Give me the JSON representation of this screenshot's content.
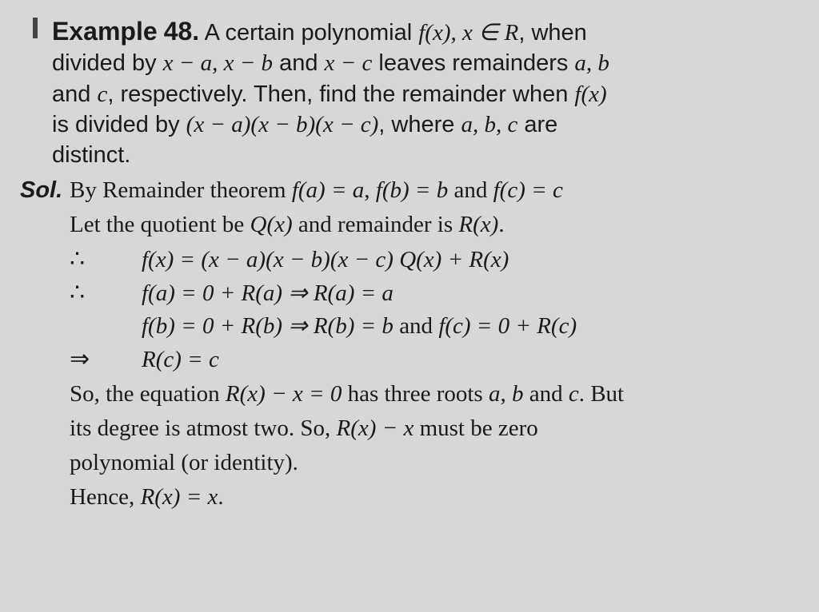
{
  "example": {
    "label": "Example",
    "number": "48.",
    "problem_l1_a": "A certain polynomial ",
    "problem_l1_math1": "f(x), x ∈ R",
    "problem_l1_b": ", when",
    "problem_l2_a": "divided by ",
    "problem_l2_math1": "x − a, x − b",
    "problem_l2_b": " and ",
    "problem_l2_math2": "x − c",
    "problem_l2_c": " leaves remainders ",
    "problem_l2_math3": "a, b",
    "problem_l3_a": "and ",
    "problem_l3_math1": "c",
    "problem_l3_b": ", respectively. Then, find the remainder when ",
    "problem_l3_math2": "f(x)",
    "problem_l4_a": "is divided by ",
    "problem_l4_math1": "(x − a)(x − b)(x − c)",
    "problem_l4_b": ", where ",
    "problem_l4_math2": "a, b, c",
    "problem_l4_c": " are",
    "problem_l5": "distinct."
  },
  "sol": {
    "label": "Sol.",
    "line1_a": "By Remainder theorem ",
    "line1_m1": "f(a) = a",
    "line1_b": ", ",
    "line1_m2": "f(b) = b",
    "line1_c": " and ",
    "line1_m3": "f(c) = c",
    "line2_a": "Let the quotient be ",
    "line2_m1": "Q(x)",
    "line2_b": " and remainder is ",
    "line2_m2": "R(x)",
    "line2_c": ".",
    "eq1": "f(x) = (x − a)(x − b)(x − c) Q(x) + R(x)",
    "eq2": "f(a) = 0 + R(a) ⇒ R(a) = a",
    "eq3_l": "f(b) = 0 + R(b) ⇒ R(b) = b",
    "eq3_c": " and ",
    "eq3_r": "f(c) = 0 + R(c)",
    "eq4": "R(c) = c",
    "line3_a": "So, the equation ",
    "line3_m1": "R(x) − x = 0",
    "line3_b": " has three roots ",
    "line3_m2": "a",
    "line3_c": ", ",
    "line3_m3": "b",
    "line3_d": " and ",
    "line3_m4": "c",
    "line3_e": ". But",
    "line4_a": "its degree is atmost two. So, ",
    "line4_m1": "R(x) − x",
    "line4_b": " must be zero",
    "line5": "polynomial (or identity).",
    "line6_a": "Hence, ",
    "line6_m1": "R(x) = x",
    "line6_b": "."
  }
}
